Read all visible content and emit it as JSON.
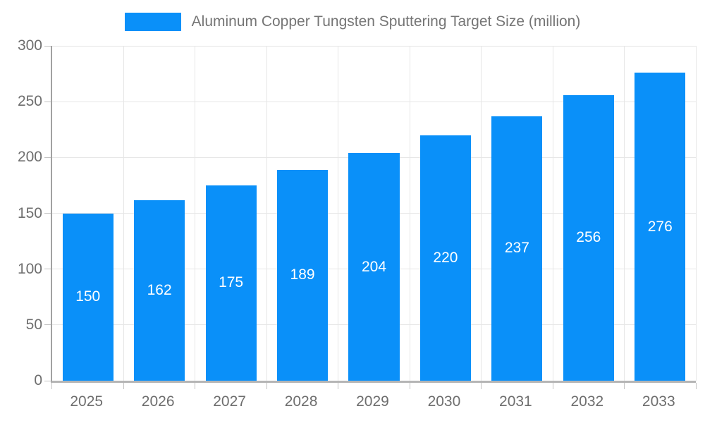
{
  "chart_data": {
    "type": "bar",
    "title": "Aluminum Copper Tungsten Sputtering Target Size (million)",
    "series_name": "Aluminum Copper Tungsten Sputtering Target Size (million)",
    "categories": [
      "2025",
      "2026",
      "2027",
      "2028",
      "2029",
      "2030",
      "2031",
      "2032",
      "2033"
    ],
    "values": [
      150,
      162,
      175,
      189,
      204,
      220,
      237,
      256,
      276
    ],
    "xlabel": "",
    "ylabel": "",
    "ylim": [
      0,
      300
    ],
    "yticks": [
      0,
      50,
      100,
      150,
      200,
      250,
      300
    ],
    "grid": true,
    "legend_position": "top",
    "colors": {
      "bar": "#0a90f9",
      "bar_label": "#ffffff",
      "grid_line": "#e6e6e6",
      "axis_line": "#a2a2a2",
      "tick_label": "#6e6e6e",
      "legend_text": "#757575",
      "background": "#ffffff"
    }
  }
}
